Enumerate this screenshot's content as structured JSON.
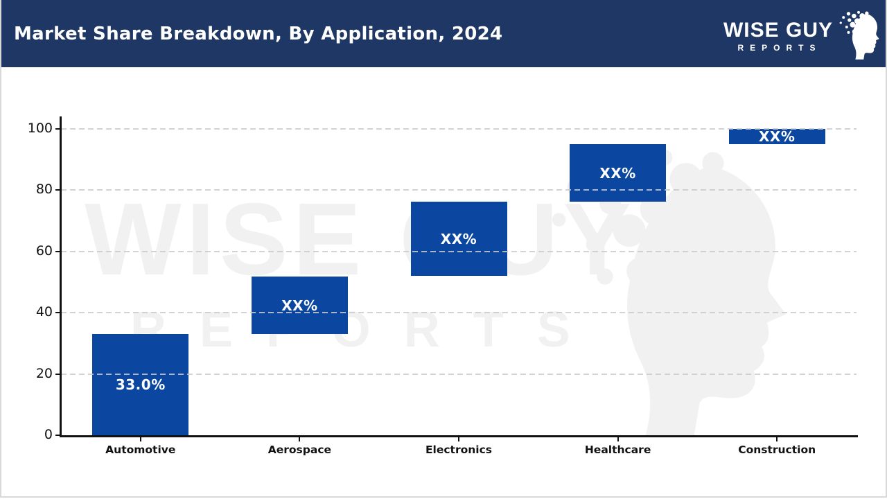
{
  "header": {
    "title": "Market Share Breakdown, By Application, 2024",
    "logo": {
      "wordmark": "WISE GUY",
      "subtext": "REPORTS"
    },
    "background_color": "#1f3764",
    "text_color": "#ffffff"
  },
  "watermark": {
    "line1": "WISE GUY",
    "line2": "R E P O R T S"
  },
  "chart_data": {
    "type": "bar",
    "subtype": "waterfall",
    "title": "Market Share Breakdown, By Application, 2024",
    "categories": [
      "Automotive",
      "Aerospace",
      "Electronics",
      "Healthcare",
      "Construction"
    ],
    "segments": [
      {
        "category": "Automotive",
        "start": 0,
        "end": 33.0,
        "label": "33.0%"
      },
      {
        "category": "Aerospace",
        "start": 33.0,
        "end": 51.7,
        "label": "XX%"
      },
      {
        "category": "Electronics",
        "start": 51.9,
        "end": 76.1,
        "label": "XX%"
      },
      {
        "category": "Healthcare",
        "start": 76.2,
        "end": 94.9,
        "label": "XX%"
      },
      {
        "category": "Construction",
        "start": 94.9,
        "end": 100.0,
        "label": "XX%"
      }
    ],
    "yticks": [
      0,
      20,
      40,
      60,
      80,
      100
    ],
    "ylim": [
      0,
      104
    ],
    "xlabel": "",
    "ylabel": "",
    "grid": "dashed-horizontal",
    "legend": "none",
    "bar_color": "#0b47a0",
    "bar_label_color": "#ffffff",
    "axis_color": "#111111",
    "grid_color": "#cbcbcb"
  }
}
